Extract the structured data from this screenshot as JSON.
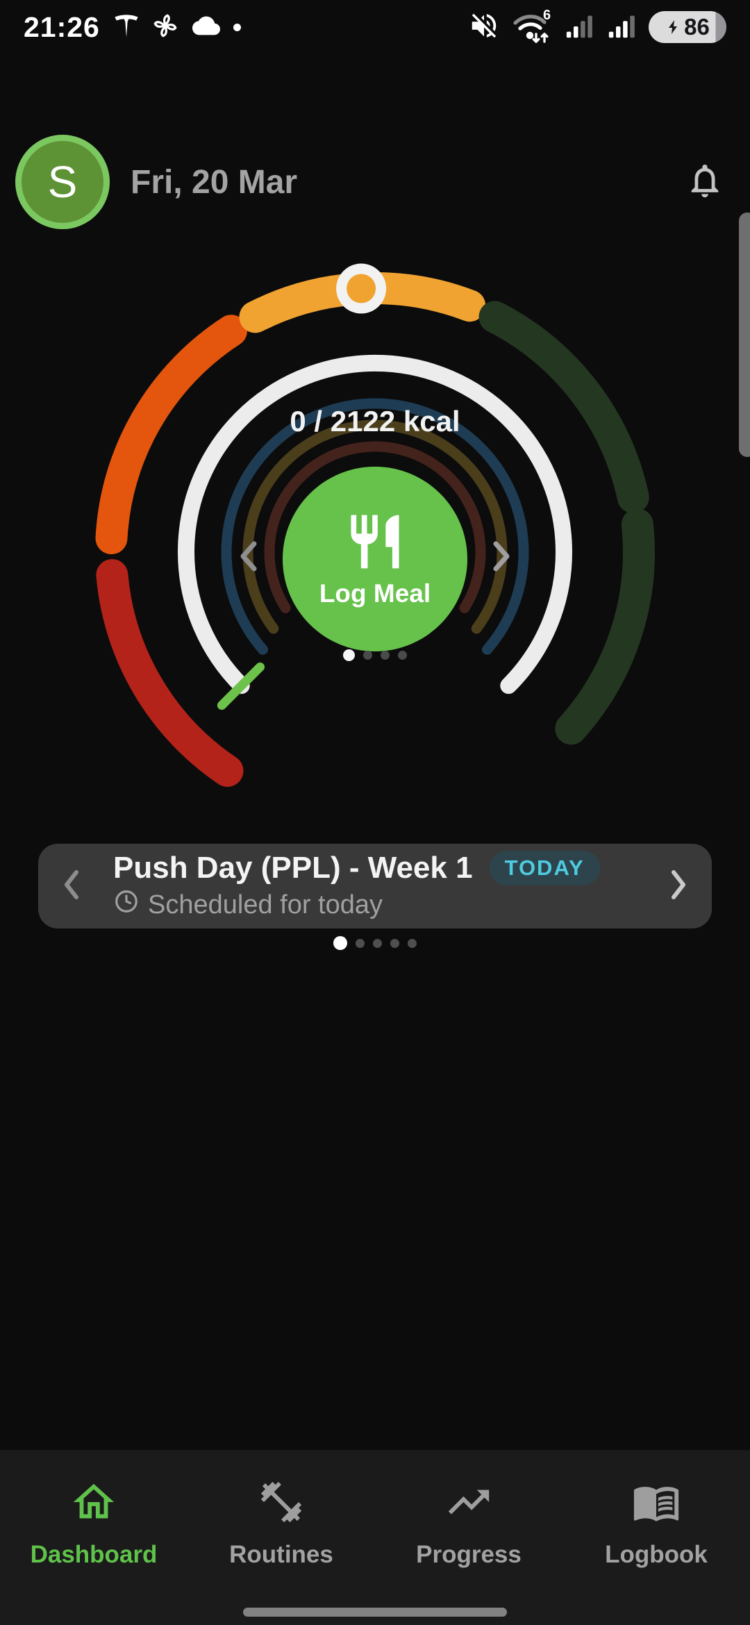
{
  "status_bar": {
    "time": "21:26",
    "wifi_generation": "6",
    "battery_percent": "86",
    "left_icons": [
      "tesla-icon",
      "fan-icon",
      "cloud-icon",
      "notification-dot"
    ],
    "right_icons": [
      "mute-icon",
      "wifi-icon",
      "signal-icon",
      "signal-icon",
      "battery-pill"
    ]
  },
  "header": {
    "avatar_initial": "S",
    "date": "Fri, 20 Mar"
  },
  "gauge": {
    "kcal_text": "0 / 2122 kcal",
    "consumed_kcal": 0,
    "target_kcal": 2122,
    "unit": "kcal",
    "action_label": "Log Meal",
    "carousel": {
      "count": 4,
      "active": 0
    },
    "outer_segments": [
      {
        "start": -146,
        "end": -95,
        "color": "#b3231a"
      },
      {
        "start": -87,
        "end": -33,
        "color": "#e4560d"
      },
      {
        "start": -27,
        "end": 21,
        "color": "#f0a331"
      },
      {
        "start": 27,
        "end": 78,
        "color": "#243821"
      },
      {
        "start": 84,
        "end": 132,
        "color": "#243821"
      }
    ],
    "marker": {
      "angle": -3,
      "ring_color": "#f2f2f2",
      "fill_color": "#f0a331"
    },
    "progress_track": {
      "start": -135,
      "end": 135,
      "color": "#ececec"
    },
    "tick_color": "#6cc24a",
    "macro_rings": [
      {
        "color": "#1e3c53",
        "radius": 214,
        "span": 131
      },
      {
        "color": "#4a3e1b",
        "radius": 183,
        "span": 127
      },
      {
        "color": "#45231d",
        "radius": 152,
        "span": 122
      }
    ],
    "button_color": "#66c24b"
  },
  "workout_card": {
    "title": "Push Day (PPL) - Week 1",
    "badge": "TODAY",
    "subtitle": "Scheduled for today",
    "carousel": {
      "count": 5,
      "active": 0
    }
  },
  "bottom_nav": {
    "items": [
      {
        "label": "Dashboard",
        "icon": "home-icon",
        "active": true
      },
      {
        "label": "Routines",
        "icon": "dumbbell-icon",
        "active": false
      },
      {
        "label": "Progress",
        "icon": "trending-up-icon",
        "active": false
      },
      {
        "label": "Logbook",
        "icon": "book-icon",
        "active": false
      }
    ]
  },
  "colors": {
    "background": "#0c0c0c",
    "nav_background": "#1b1b1b",
    "card_background": "#393939",
    "accent_green": "#66c24b",
    "avatar_border": "#7cc860",
    "avatar_fill": "#5d9334",
    "badge_background": "#2e444c",
    "badge_text": "#4ecbe0",
    "date_text": "#a3a3a3",
    "inactive_gray": "#9e9e9e"
  }
}
